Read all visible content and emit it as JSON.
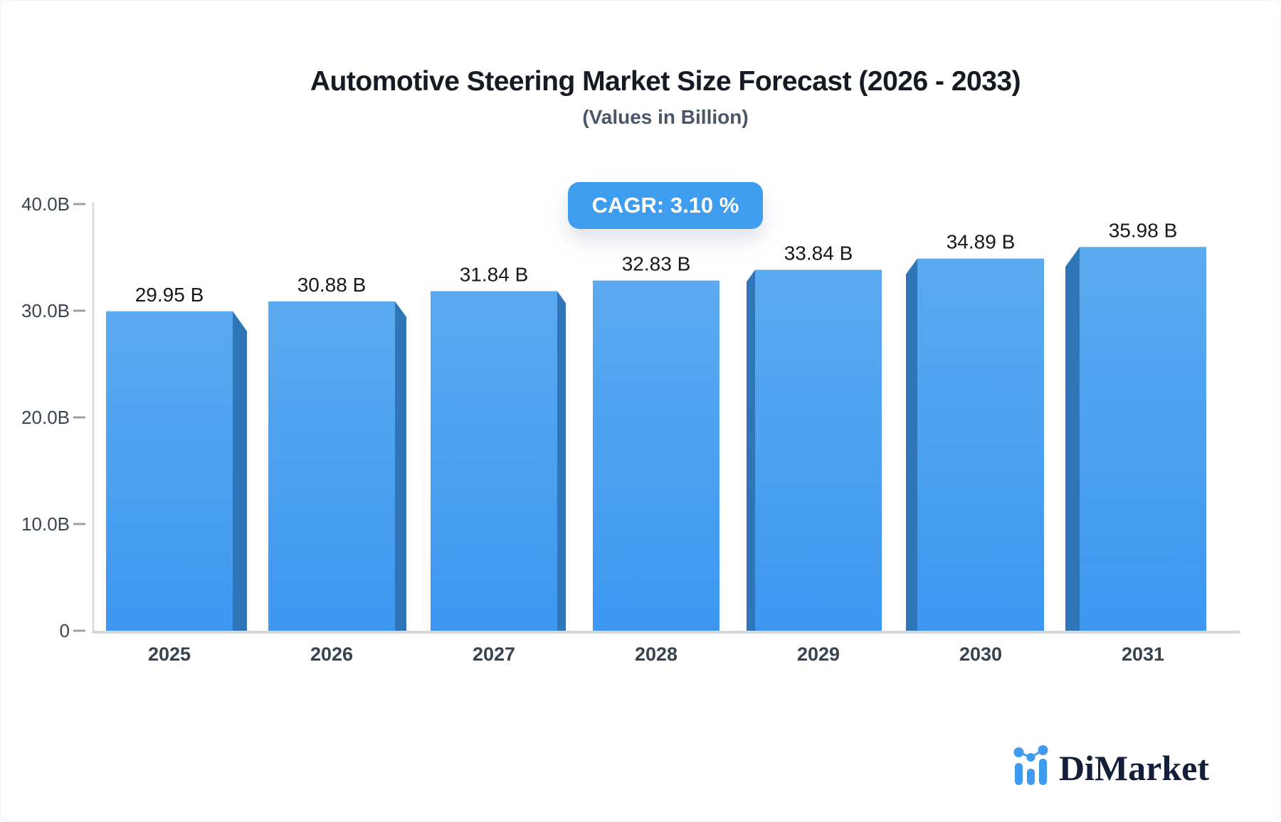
{
  "header": {
    "title": "Automotive Steering Market Size Forecast (2026 - 2033)",
    "subtitle": "(Values in Billion)",
    "cagr_badge": "CAGR: 3.10 %"
  },
  "logo": {
    "text": "DiMarket",
    "icon": "mini-bar-line-chart-icon"
  },
  "colors": {
    "bar_gradient_top": "#5baaef",
    "bar_gradient_bottom": "#3d97f1",
    "bar_side_3d": "#2e76b8",
    "badge_background": "#3f9df0",
    "axis_line": "#dbdde1",
    "baseline": "#d5d7db",
    "tick_mark": "#9aa1ab",
    "logo_blue": "#3e9bf0",
    "logo_navy": "#141e38"
  },
  "chart_data": {
    "type": "bar",
    "title": "Automotive Steering Market Size Forecast (2026 - 2033)",
    "subtitle": "(Values in Billion)",
    "categories": [
      "2025",
      "2026",
      "2027",
      "2028",
      "2029",
      "2030",
      "2031"
    ],
    "values": [
      29.95,
      30.88,
      31.84,
      32.83,
      33.84,
      34.89,
      35.98
    ],
    "data_labels": [
      "29.95 B",
      "30.88 B",
      "31.84 B",
      "32.83 B",
      "33.84 B",
      "34.89 B",
      "35.98 B"
    ],
    "ylim": [
      0,
      40
    ],
    "ytick_values": [
      40,
      30,
      20,
      10,
      0
    ],
    "ytick_labels": [
      "40.0B",
      "30.0B",
      "20.0B",
      "10.0B",
      "0"
    ],
    "xlabel": "",
    "ylabel": "",
    "grid": false,
    "legend": false,
    "style": "3d-perspective-bars"
  }
}
